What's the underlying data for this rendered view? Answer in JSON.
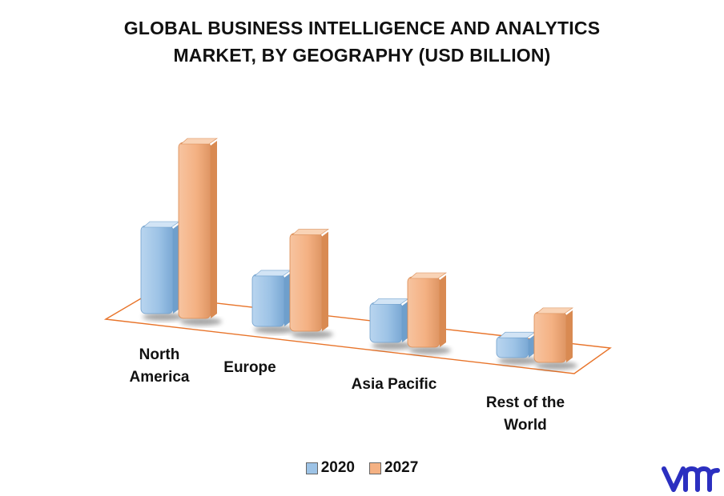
{
  "title_line1": "GLOBAL BUSINESS INTELLIGENCE AND ANALYTICS",
  "title_line2": "MARKET, BY GEOGRAPHY (USD BILLION)",
  "colors": {
    "series_2020": "#9dc3e6",
    "series_2020_dark": "#6f9fcc",
    "series_2027": "#f4b183",
    "series_2027_dark": "#d98a52",
    "floor_line": "#e8742a"
  },
  "chart_data": {
    "type": "bar",
    "title": "GLOBAL BUSINESS INTELLIGENCE AND ANALYTICS MARKET, BY GEOGRAPHY (USD BILLION)",
    "categories": [
      "North America",
      "Europe",
      "Asia Pacific",
      "Rest of the World"
    ],
    "category_labels": [
      [
        "North",
        "America"
      ],
      [
        "Europe"
      ],
      [
        "Asia Pacific"
      ],
      [
        "Rest of the",
        "World"
      ]
    ],
    "series": [
      {
        "name": "2020",
        "values": [
          11.5,
          6.8,
          5.2,
          2.8
        ]
      },
      {
        "name": "2027",
        "values": [
          23.0,
          12.8,
          9.2,
          6.6
        ]
      }
    ],
    "xlabel": "",
    "ylabel": "",
    "grid": false,
    "legend_position": "bottom"
  },
  "legend": {
    "label_2020": "2020",
    "label_2027": "2027"
  },
  "logo": {
    "icon": "vmr-logo-icon"
  }
}
